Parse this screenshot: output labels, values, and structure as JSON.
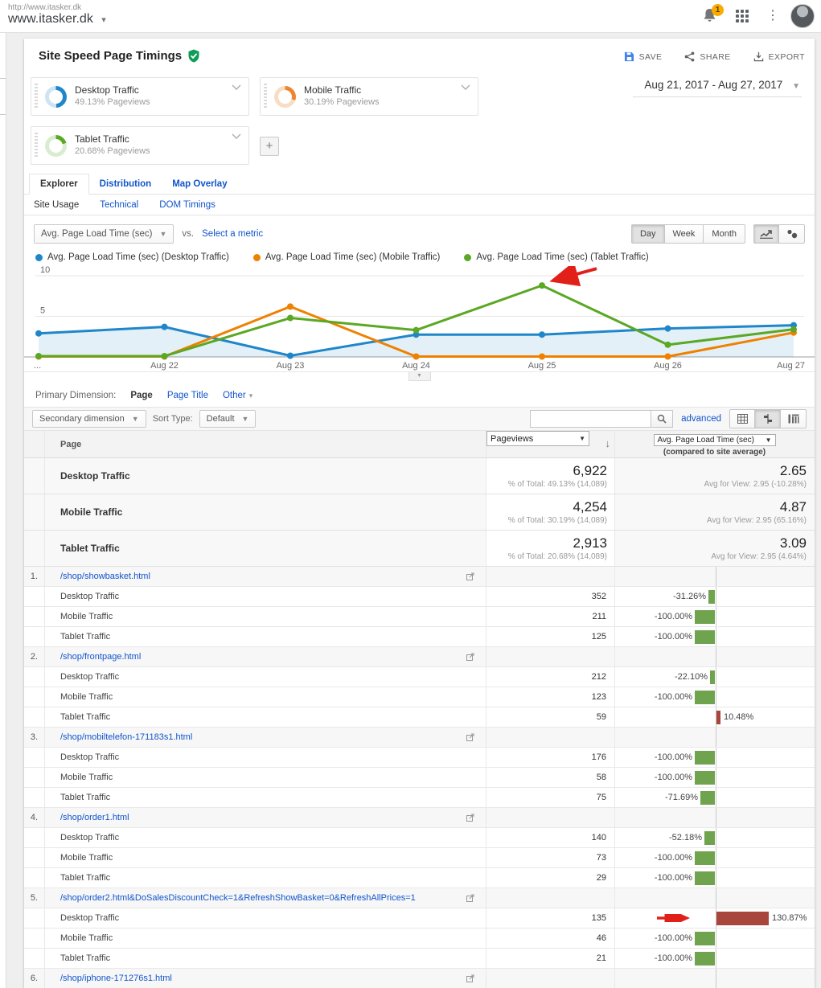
{
  "header": {
    "url_small": "http://www.itasker.dk",
    "property_name": "www.itasker.dk",
    "notification_count": "1"
  },
  "toolbar": {
    "title": "Site Speed Page Timings",
    "save_label": "SAVE",
    "share_label": "SHARE",
    "export_label": "EXPORT",
    "date_range": "Aug 21, 2017 - Aug 27, 2017"
  },
  "segments": [
    {
      "name": "Desktop Traffic",
      "detail": "49.13% Pageviews",
      "pct": 49.13,
      "color": "#1f87c9",
      "track": "#cfe4f3"
    },
    {
      "name": "Mobile Traffic",
      "detail": "30.19% Pageviews",
      "pct": 30.19,
      "color": "#ef8432",
      "track": "#f8ddc5"
    },
    {
      "name": "Tablet Traffic",
      "detail": "20.68% Pageviews",
      "pct": 20.68,
      "color": "#5aa823",
      "track": "#d9ecd0"
    }
  ],
  "add_segment_label": "+",
  "tabs": {
    "explorer": "Explorer",
    "distribution": "Distribution",
    "map_overlay": "Map Overlay"
  },
  "subtabs": {
    "site_usage": "Site Usage",
    "technical": "Technical",
    "dom_timings": "DOM Timings"
  },
  "metric_bar": {
    "metric": "Avg. Page Load Time (sec)",
    "vs_label": "vs.",
    "select_metric": "Select a metric",
    "day": "Day",
    "week": "Week",
    "month": "Month"
  },
  "chart_data": {
    "type": "line",
    "x": [
      "Aug 21",
      "Aug 22",
      "Aug 23",
      "Aug 24",
      "Aug 25",
      "Aug 26",
      "Aug 27"
    ],
    "x_tick_labels": [
      "...",
      "Aug 22",
      "Aug 23",
      "Aug 24",
      "Aug 25",
      "Aug 26",
      "Aug 27"
    ],
    "ylim": [
      0,
      10
    ],
    "yticks": [
      5,
      10
    ],
    "legend_position": "top",
    "grid": true,
    "annotation": "red arrow pointing at Tablet Traffic peak on Aug 25",
    "series": [
      {
        "name": "Avg. Page Load Time (sec) (Desktop Traffic)",
        "color": "#1f87c9",
        "area": true,
        "values": [
          2.9,
          3.7,
          0.15,
          2.75,
          2.75,
          3.5,
          3.9
        ]
      },
      {
        "name": "Avg. Page Load Time (sec) (Mobile Traffic)",
        "color": "#ef8100",
        "area": false,
        "values": [
          0.05,
          0.05,
          6.2,
          0.05,
          0.05,
          0.05,
          3.0
        ]
      },
      {
        "name": "Avg. Page Load Time (sec) (Tablet Traffic)",
        "color": "#5aa823",
        "area": false,
        "values": [
          0.1,
          0.1,
          4.8,
          3.3,
          8.8,
          1.5,
          3.4
        ]
      }
    ]
  },
  "dimension_bar": {
    "label": "Primary Dimension:",
    "page": "Page",
    "page_title": "Page Title",
    "other": "Other"
  },
  "controls": {
    "secondary_dimension": "Secondary dimension",
    "sort_type_label": "Sort Type:",
    "sort_type_value": "Default",
    "search_value": "",
    "advanced_label": "advanced"
  },
  "table": {
    "columns": {
      "page": "Page",
      "pageviews": "Pageviews",
      "load": "Avg. Page Load Time (sec)",
      "load_sub": "(compared to site average)"
    },
    "summary": [
      {
        "name": "Desktop Traffic",
        "pageviews": "6,922",
        "pv_sub": "% of Total: 49.13% (14,089)",
        "load": "2.65",
        "load_sub": "Avg for View: 2.95 (-10.28%)"
      },
      {
        "name": "Mobile Traffic",
        "pageviews": "4,254",
        "pv_sub": "% of Total: 30.19% (14,089)",
        "load": "4.87",
        "load_sub": "Avg for View: 2.95 (65.16%)"
      },
      {
        "name": "Tablet Traffic",
        "pageviews": "2,913",
        "pv_sub": "% of Total: 20.68% (14,089)",
        "load": "3.09",
        "load_sub": "Avg for View: 2.95 (4.64%)"
      }
    ],
    "rows": [
      {
        "num": "1.",
        "url": "/shop/showbasket.html",
        "subs": [
          {
            "name": "Desktop Traffic",
            "pv": "352",
            "pct": "-31.26%",
            "value": -31.26
          },
          {
            "name": "Mobile Traffic",
            "pv": "211",
            "pct": "-100.00%",
            "value": -100
          },
          {
            "name": "Tablet Traffic",
            "pv": "125",
            "pct": "-100.00%",
            "value": -100
          }
        ]
      },
      {
        "num": "2.",
        "url": "/shop/frontpage.html",
        "subs": [
          {
            "name": "Desktop Traffic",
            "pv": "212",
            "pct": "-22.10%",
            "value": -22.1
          },
          {
            "name": "Mobile Traffic",
            "pv": "123",
            "pct": "-100.00%",
            "value": -100
          },
          {
            "name": "Tablet Traffic",
            "pv": "59",
            "pct": "10.48%",
            "value": 10.48
          }
        ]
      },
      {
        "num": "3.",
        "url": "/shop/mobiltelefon-171183s1.html",
        "subs": [
          {
            "name": "Desktop Traffic",
            "pv": "176",
            "pct": "-100.00%",
            "value": -100
          },
          {
            "name": "Mobile Traffic",
            "pv": "58",
            "pct": "-100.00%",
            "value": -100
          },
          {
            "name": "Tablet Traffic",
            "pv": "75",
            "pct": "-71.69%",
            "value": -71.69
          }
        ]
      },
      {
        "num": "4.",
        "url": "/shop/order1.html",
        "subs": [
          {
            "name": "Desktop Traffic",
            "pv": "140",
            "pct": "-52.18%",
            "value": -52.18
          },
          {
            "name": "Mobile Traffic",
            "pv": "73",
            "pct": "-100.00%",
            "value": -100
          },
          {
            "name": "Tablet Traffic",
            "pv": "29",
            "pct": "-100.00%",
            "value": -100
          }
        ]
      },
      {
        "num": "5.",
        "url": "/shop/order2.html&DoSalesDiscountCheck=1&RefreshShowBasket=0&RefreshAllPrices=1",
        "subs": [
          {
            "name": "Desktop Traffic",
            "pv": "135",
            "pct": "130.87%",
            "value": 130.87,
            "arrow": true
          },
          {
            "name": "Mobile Traffic",
            "pv": "46",
            "pct": "-100.00%",
            "value": -100
          },
          {
            "name": "Tablet Traffic",
            "pv": "21",
            "pct": "-100.00%",
            "value": -100
          }
        ]
      },
      {
        "num": "6.",
        "url": "/shop/iphone-171276s1.html",
        "subs": []
      }
    ]
  }
}
